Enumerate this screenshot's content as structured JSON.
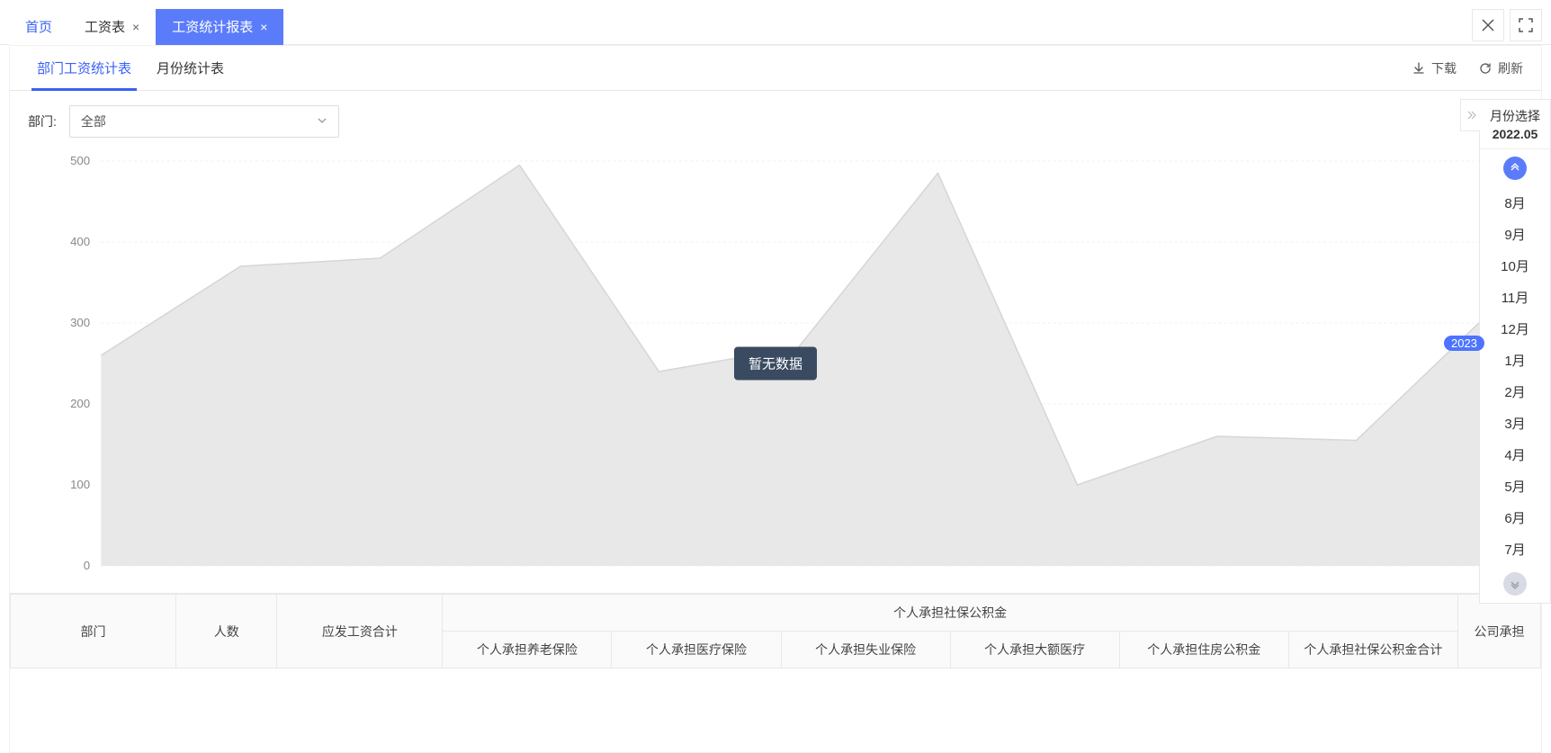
{
  "topTabs": {
    "home": "首页",
    "t1": "工资表",
    "t2": "工资统计报表"
  },
  "innerTabs": {
    "a": "部门工资统计表",
    "b": "月份统计表"
  },
  "actions": {
    "download": "下载",
    "refresh": "刷新"
  },
  "filter": {
    "label": "部门:",
    "value": "全部"
  },
  "chart": {
    "type": "area",
    "ylim": [
      0,
      500
    ],
    "ytick_step": 100,
    "yticks": [
      0,
      100,
      200,
      300,
      400,
      500
    ],
    "values": [
      260,
      370,
      380,
      495,
      240,
      270,
      485,
      100,
      160,
      155,
      320
    ],
    "fill_color": "#e8e8e8",
    "stroke_color": "#d6d6d6",
    "grid_color": "#f0f0f0",
    "text_color": "#888888",
    "no_data_text": "暂无数据",
    "no_data_bg": "#3a4b61"
  },
  "table": {
    "cols_fixed": [
      "部门",
      "人数",
      "应发工资合计"
    ],
    "group_header": "个人承担社保公积金",
    "cols_sub": [
      "个人承担养老保险",
      "个人承担医疗保险",
      "个人承担失业保险",
      "个人承担大额医疗",
      "个人承担住房公积金",
      "个人承担社保公积金合计"
    ],
    "overflow_col": "公司承担"
  },
  "monthPanel": {
    "title": "月份选择",
    "current": "2022.05",
    "yearBadge": "2023",
    "months": [
      "8月",
      "9月",
      "10月",
      "11月",
      "12月",
      "1月",
      "2月",
      "3月",
      "4月",
      "5月",
      "6月",
      "7月"
    ],
    "badge_after_index": 4
  }
}
